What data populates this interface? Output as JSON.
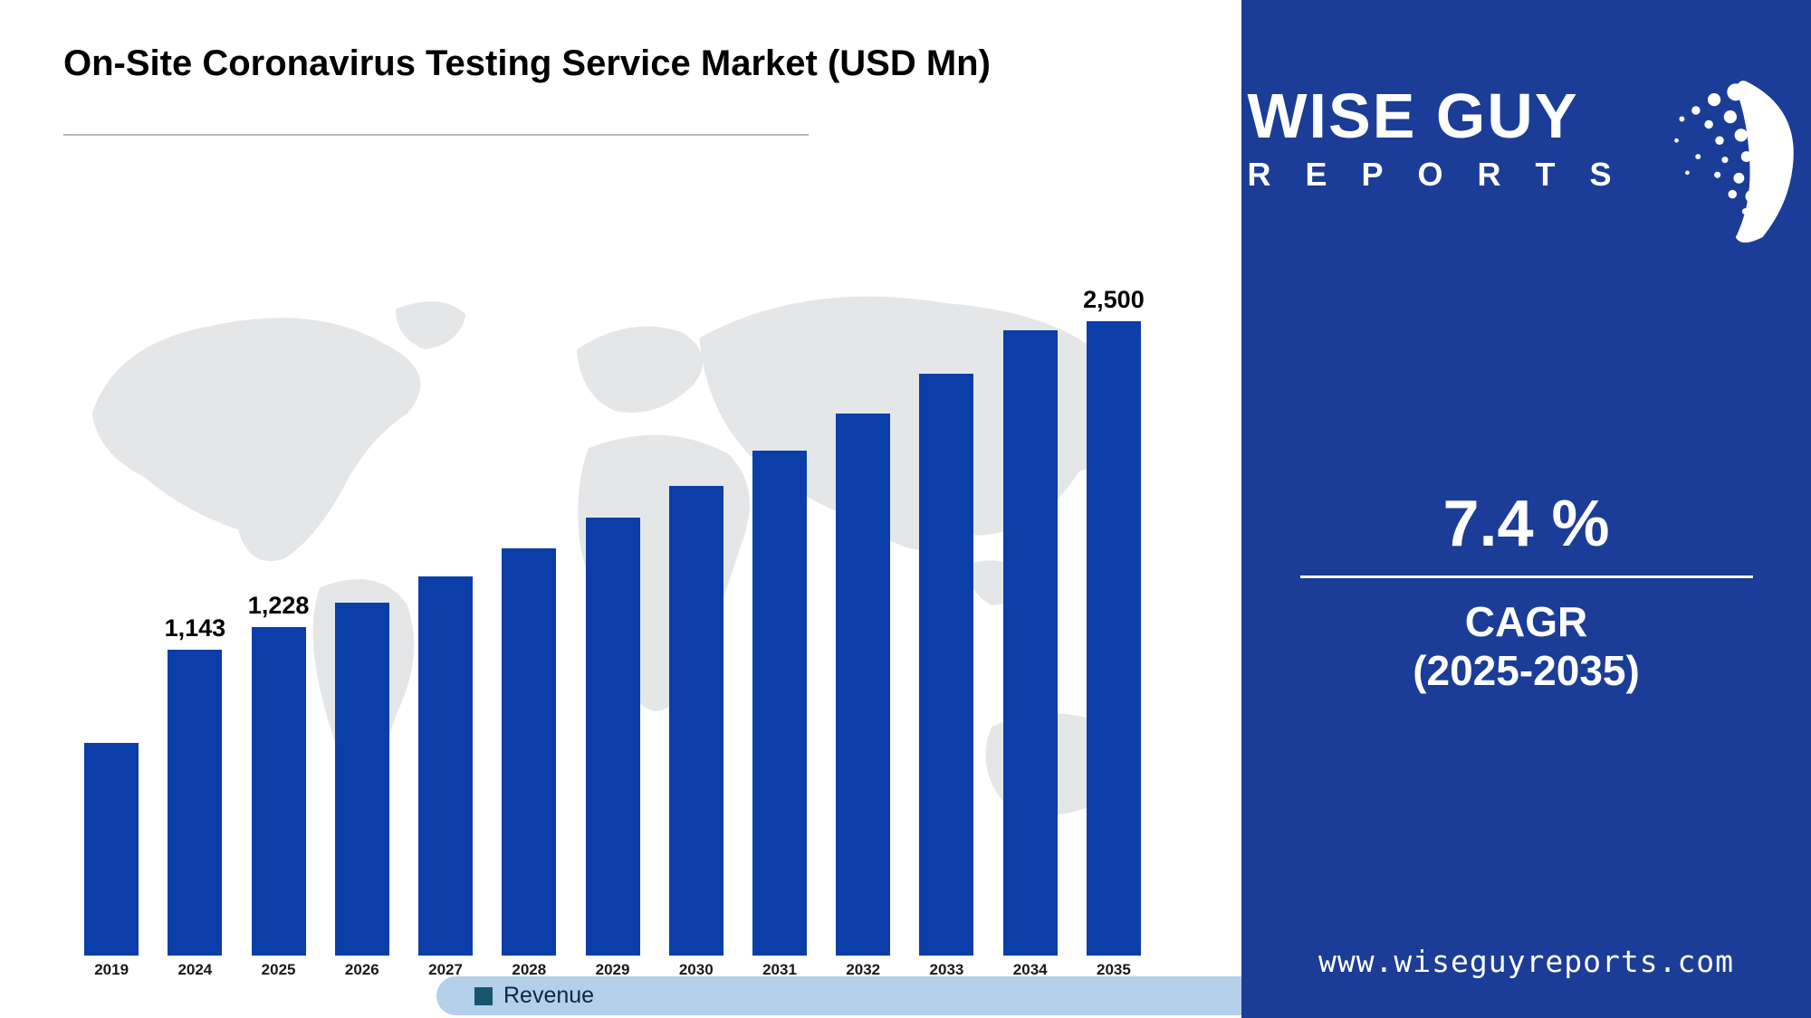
{
  "title": "On-Site Coronavirus Testing Service Market (USD Mn)",
  "legend": {
    "label": "Revenue",
    "swatch_color": "#19546e"
  },
  "sidebar": {
    "logo_line1": "WISE GUY",
    "logo_line2": "REPORTS",
    "cagr_value": "7.4 %",
    "cagr_label": "CAGR",
    "cagr_period": "(2025-2035)",
    "website": "www.wiseguyreports.com"
  },
  "colors": {
    "sidebar_bg": "#1b3c97",
    "bar": "#0b3ea8",
    "legend_strip": "#b3cfe9",
    "map_watermark": "#e4e6e8"
  },
  "chart_data": {
    "type": "bar",
    "title": "On-Site Coronavirus Testing Service Market (USD Mn)",
    "categories": [
      "2019",
      "2024",
      "2025",
      "2026",
      "2027",
      "2028",
      "2029",
      "2030",
      "2031",
      "2032",
      "2033",
      "2034",
      "2035"
    ],
    "values": [
      795,
      1143,
      1228,
      1319,
      1417,
      1521,
      1634,
      1755,
      1885,
      2024,
      2174,
      2335,
      2500
    ],
    "data_labels": {
      "2024": "1,143",
      "2025": "1,228",
      "2035": "2,500"
    },
    "xlabel": "",
    "ylabel": "",
    "ylim": [
      0,
      2500
    ],
    "grid": false,
    "legend_position": "bottom",
    "legend": [
      {
        "label": "Revenue"
      }
    ]
  }
}
